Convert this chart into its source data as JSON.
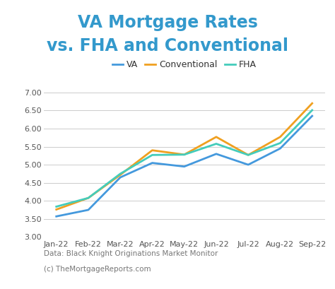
{
  "title_line1": "VA Mortgage Rates",
  "title_line2": "vs. FHA and Conventional",
  "title_color": "#3399cc",
  "title_fontsize": 17,
  "title_fontweight": "bold",
  "x_labels": [
    "Jan-22",
    "Feb-22",
    "Mar-22",
    "Apr-22",
    "May-22",
    "Jun-22",
    "Jul-22",
    "Aug-22",
    "Sep-22"
  ],
  "va_values": [
    3.57,
    3.75,
    4.65,
    5.05,
    4.95,
    5.3,
    5.0,
    5.45,
    6.35
  ],
  "conventional_values": [
    3.76,
    4.08,
    4.72,
    5.4,
    5.28,
    5.77,
    5.27,
    5.77,
    6.7
  ],
  "fha_values": [
    3.84,
    4.08,
    4.75,
    5.27,
    5.28,
    5.58,
    5.27,
    5.6,
    6.51
  ],
  "va_color": "#4499dd",
  "conventional_color": "#f0a020",
  "fha_color": "#44ccbb",
  "ylim": [
    3.0,
    7.0
  ],
  "yticks": [
    3.0,
    3.5,
    4.0,
    4.5,
    5.0,
    5.5,
    6.0,
    6.5,
    7.0
  ],
  "legend_labels": [
    "VA",
    "Conventional",
    "FHA"
  ],
  "footnote1": "Data: Black Knight Originations Market Monitor",
  "footnote2": "(c) TheMortgageReports.com",
  "background_color": "#ffffff",
  "grid_color": "#cccccc",
  "linewidth": 2.0,
  "tick_fontsize": 8,
  "footnote_fontsize": 7.5
}
